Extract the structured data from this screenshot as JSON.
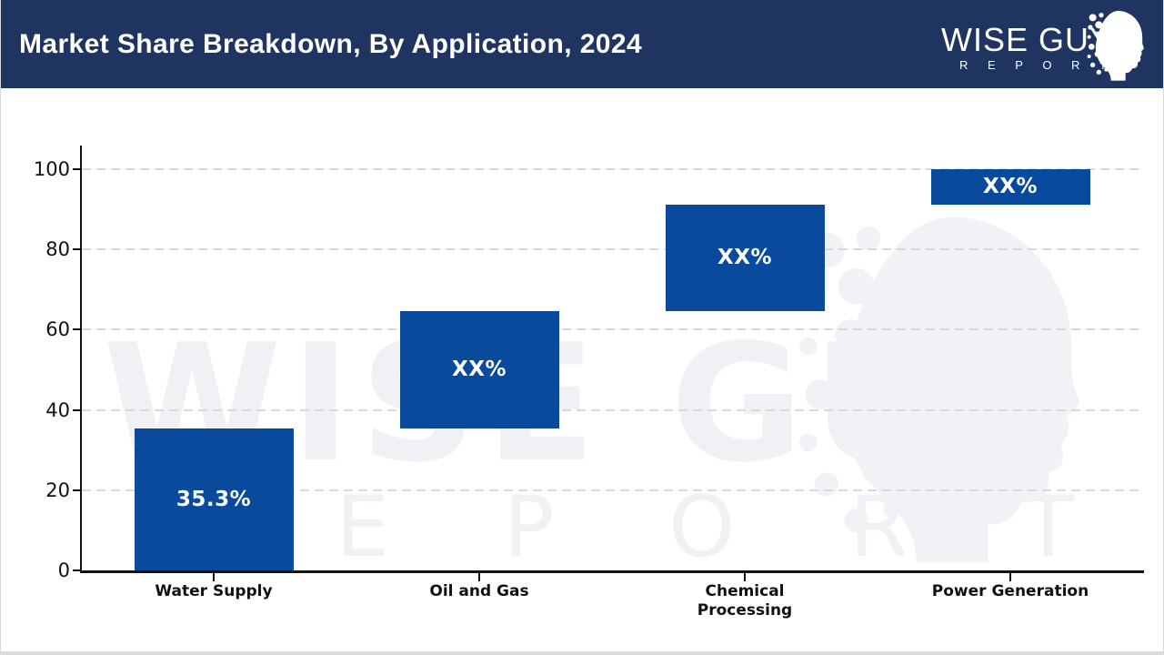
{
  "header": {
    "title": "Market Share Breakdown, By Application, 2024",
    "bg_color": "#1f3461",
    "logo": {
      "line1": "WISE GUY",
      "line2": "R E P O R T S"
    }
  },
  "watermark": {
    "line1": "WISE GUY",
    "line2": "R E P O R T S"
  },
  "chart_data": {
    "type": "bar",
    "subtype": "waterfall",
    "title": "Market Share Breakdown, By Application, 2024",
    "xlabel": "",
    "ylabel": "",
    "categories": [
      "Water Supply",
      "Oil and Gas",
      "Chemical Processing",
      "Power Generation"
    ],
    "tick_labels": [
      "Water Supply",
      "Oil and Gas",
      "Chemical\nProcessing",
      "Power Generation"
    ],
    "segments": [
      {
        "category": "Water Supply",
        "start": 0,
        "end": 35.3,
        "size": 35.3,
        "label": "35.3%"
      },
      {
        "category": "Oil and Gas",
        "start": 35.3,
        "end": 64.7,
        "size": 29.4,
        "label": "XX%"
      },
      {
        "category": "Chemical Processing",
        "start": 64.7,
        "end": 91.2,
        "size": 26.5,
        "label": "XX%"
      },
      {
        "category": "Power Generation",
        "start": 91.2,
        "end": 100,
        "size": 8.8,
        "label": "XX%"
      }
    ],
    "yticks": [
      0,
      20,
      40,
      60,
      80,
      100
    ],
    "ylim": [
      0,
      105
    ],
    "grid": "horizontal dashed",
    "gridline_color": "#d9d9d9",
    "bar_color": "#0a4a9c",
    "bar_label_color": "#ffffff",
    "legend": "none"
  }
}
